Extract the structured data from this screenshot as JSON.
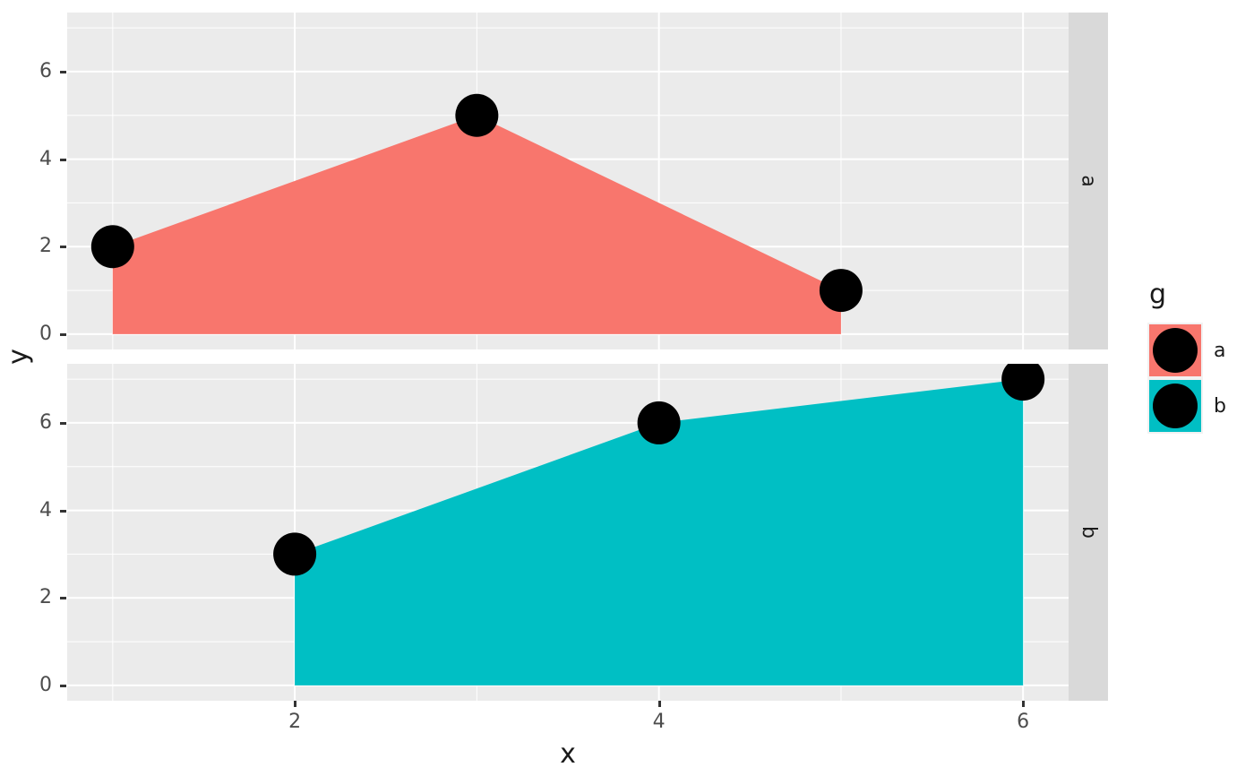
{
  "chart_data": {
    "type": "area",
    "xlabel": "x",
    "ylabel": "y",
    "xlim": [
      0.75,
      6.25
    ],
    "ylim": [
      -0.35,
      7.35
    ],
    "x_major_ticks": [
      2,
      4,
      6
    ],
    "x_minor_ticks": [
      1,
      3,
      5
    ],
    "y_major_ticks": [
      0,
      2,
      4,
      6
    ],
    "y_minor_ticks": [
      1,
      3,
      5,
      7
    ],
    "grid": true,
    "facets": [
      {
        "strip_label": "a",
        "series": "a",
        "fill": "#F8766D",
        "baseline": 0,
        "points": [
          [
            1,
            2
          ],
          [
            3,
            5
          ],
          [
            5,
            1
          ]
        ]
      },
      {
        "strip_label": "b",
        "series": "b",
        "fill": "#00BFC4",
        "baseline": 0,
        "points": [
          [
            2,
            3
          ],
          [
            4,
            6
          ],
          [
            6,
            7
          ]
        ]
      }
    ],
    "legend": {
      "title": "g",
      "position": "right",
      "entries": [
        {
          "label": "a",
          "fill": "#F8766D"
        },
        {
          "label": "b",
          "fill": "#00BFC4"
        }
      ]
    }
  },
  "colors": {
    "panel_bg": "#EBEBEB",
    "strip_bg": "#D9D9D9",
    "grid": "#FFFFFF",
    "tick_mark": "#333333",
    "tick_label": "#4D4D4D",
    "title_text": "#1A1A1A",
    "point": "#000000",
    "series_a": "#F8766D",
    "series_b": "#00BFC4"
  }
}
